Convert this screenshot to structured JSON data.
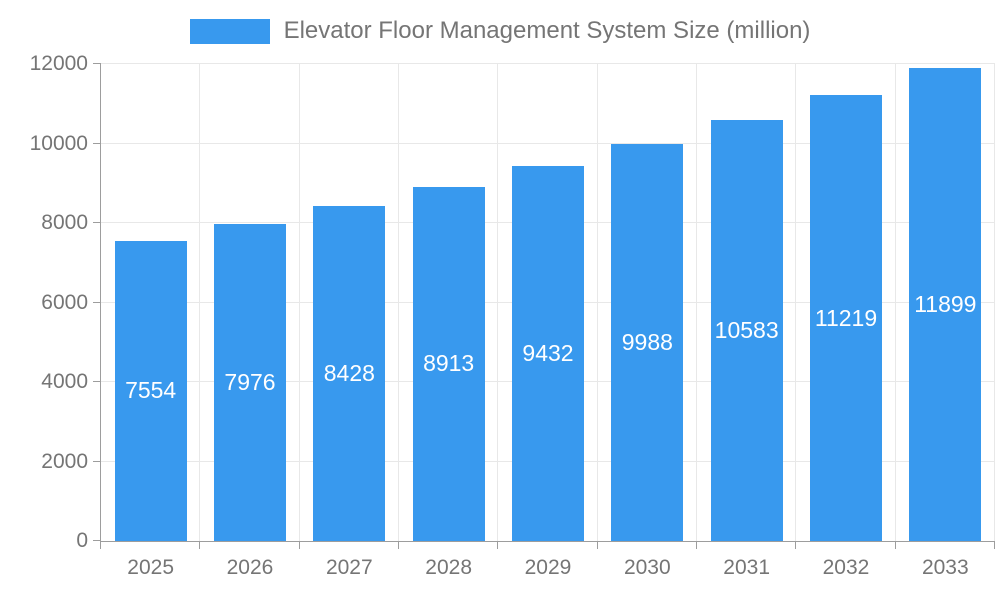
{
  "chart_data": {
    "type": "bar",
    "title": "Elevator Floor Management System Size (million)",
    "categories": [
      "2025",
      "2026",
      "2027",
      "2028",
      "2029",
      "2030",
      "2031",
      "2032",
      "2033"
    ],
    "series": [
      {
        "name": "Elevator Floor Management System Size (million)",
        "values": [
          7554,
          7976,
          8428,
          8913,
          9432,
          9988,
          10583,
          11219,
          11899
        ]
      }
    ],
    "xlabel": "",
    "ylabel": "",
    "ylim": [
      0,
      12000
    ],
    "yticks": [
      0,
      2000,
      4000,
      6000,
      8000,
      10000,
      12000
    ],
    "grid": true,
    "legend_position": "top-center",
    "value_labels": "inside-center",
    "colors": {
      "bar": "#3899EE",
      "axis": "#9D9D9D",
      "grid": "#E8E8E8",
      "text": "#757575",
      "value_label": "#FFFFFF",
      "background": "#FFFFFF"
    }
  }
}
